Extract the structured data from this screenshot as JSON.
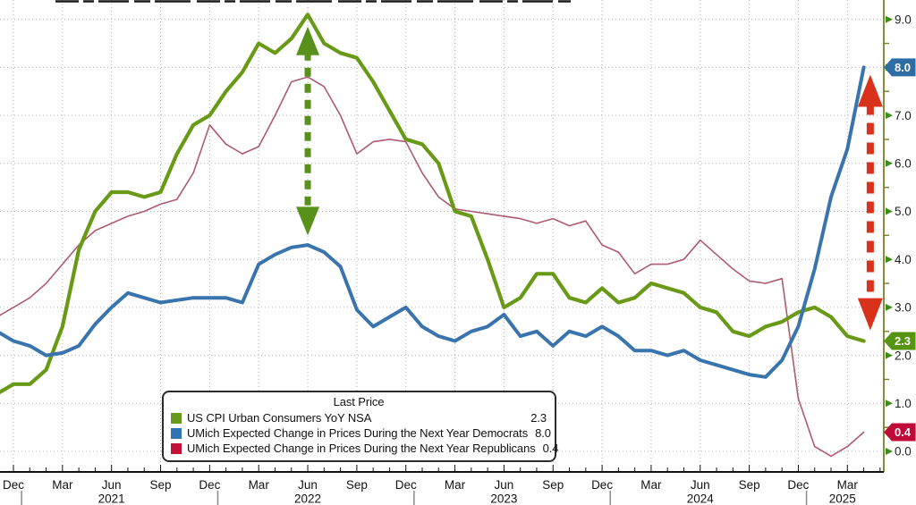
{
  "chart_data": {
    "type": "line",
    "title": "",
    "x_unit": "month",
    "x_range": [
      "Nov 2020",
      "Apr 2025"
    ],
    "start_month_index": -1,
    "ylim": [
      0,
      9
    ],
    "grid": "dotted",
    "legend": {
      "title": "Last Price",
      "position": "bottom-center-box"
    },
    "y_axis": {
      "side": "right",
      "ticks": [
        "9.0",
        "8.0",
        "7.0",
        "6.0",
        "5.0",
        "4.0",
        "3.0",
        "2.0",
        "1.0",
        "0.0"
      ],
      "minor_step": 0.5,
      "axis_color": "#7c7f21",
      "marker_color": "#3c8d1d",
      "label_color": "#1f1f1f"
    },
    "x_axis": {
      "axis_color": "#111111",
      "label_color": "#111111",
      "ticks": [
        {
          "label": "Dec",
          "m": 0
        },
        {
          "label": "Mar",
          "m": 3
        },
        {
          "label": "Jun",
          "m": 6
        },
        {
          "label": "Sep",
          "m": 9
        },
        {
          "label": "Dec",
          "m": 12
        },
        {
          "label": "Mar",
          "m": 15
        },
        {
          "label": "Jun",
          "m": 18
        },
        {
          "label": "Sep",
          "m": 21
        },
        {
          "label": "Dec",
          "m": 24
        },
        {
          "label": "Mar",
          "m": 27
        },
        {
          "label": "Jun",
          "m": 30
        },
        {
          "label": "Sep",
          "m": 33
        },
        {
          "label": "Dec",
          "m": 36
        },
        {
          "label": "Mar",
          "m": 39
        },
        {
          "label": "Jun",
          "m": 42
        },
        {
          "label": "Sep",
          "m": 45
        },
        {
          "label": "Dec",
          "m": 48
        },
        {
          "label": "Mar",
          "m": 51
        }
      ],
      "year_labels": [
        {
          "label": "2021",
          "m": 6
        },
        {
          "label": "2022",
          "m": 18
        },
        {
          "label": "2023",
          "m": 30
        },
        {
          "label": "2024",
          "m": 42
        },
        {
          "label": "2025",
          "m": 50.7
        }
      ],
      "year_separators_m": [
        0.5,
        12.5,
        24.5,
        36.5,
        48.5
      ]
    },
    "series": [
      {
        "name": "US CPI Urban Consumers YoY NSA",
        "last": "2.3",
        "line_color": "#699a17",
        "swatch_color": "#69991a",
        "badge_color": "#579510",
        "line_width": 4.2,
        "values": [
          1.2,
          1.4,
          1.4,
          1.7,
          2.6,
          4.2,
          5.0,
          5.4,
          5.4,
          5.3,
          5.4,
          6.2,
          6.8,
          7.0,
          7.5,
          7.9,
          8.5,
          8.3,
          8.6,
          9.1,
          8.5,
          8.3,
          8.2,
          7.7,
          7.1,
          6.5,
          6.4,
          6.0,
          5.0,
          4.9,
          4.0,
          3.0,
          3.2,
          3.7,
          3.7,
          3.2,
          3.1,
          3.4,
          3.1,
          3.2,
          3.5,
          3.4,
          3.3,
          3.0,
          2.9,
          2.5,
          2.4,
          2.6,
          2.7,
          2.9,
          3.0,
          2.8,
          2.4,
          2.3
        ]
      },
      {
        "name": "UMich Expected Change in Prices During the Next Year Democrats",
        "last": "8.0",
        "line_color": "#3a74ae",
        "swatch_color": "#2e74b5",
        "badge_color": "#2e6da4",
        "line_width": 4.0,
        "values": [
          2.5,
          2.3,
          2.2,
          2.0,
          2.05,
          2.2,
          2.65,
          3.0,
          3.3,
          3.2,
          3.1,
          3.15,
          3.2,
          3.2,
          3.2,
          3.1,
          3.9,
          4.1,
          4.25,
          4.3,
          4.15,
          3.85,
          2.95,
          2.6,
          2.8,
          3.0,
          2.6,
          2.4,
          2.3,
          2.5,
          2.6,
          2.85,
          2.4,
          2.5,
          2.2,
          2.5,
          2.4,
          2.6,
          2.4,
          2.1,
          2.1,
          2.0,
          2.1,
          1.9,
          1.8,
          1.7,
          1.6,
          1.55,
          1.9,
          2.6,
          3.8,
          5.3,
          6.3,
          8.0
        ]
      },
      {
        "name": "UMich Expected Change in Prices During the Next Year Republicans",
        "last": "0.4",
        "line_color": "#ad5a70",
        "swatch_color": "#c11237",
        "badge_color": "#c00b38",
        "line_width": 1.6,
        "values": [
          2.8,
          3.0,
          3.2,
          3.5,
          3.9,
          4.3,
          4.6,
          4.75,
          4.9,
          5.0,
          5.15,
          5.25,
          5.8,
          6.8,
          6.4,
          6.2,
          6.35,
          7.0,
          7.7,
          7.8,
          7.6,
          7.0,
          6.2,
          6.45,
          6.5,
          6.45,
          5.8,
          5.3,
          5.05,
          5.0,
          4.95,
          4.9,
          4.85,
          4.75,
          4.85,
          4.7,
          4.8,
          4.3,
          4.15,
          3.7,
          3.9,
          3.9,
          4.0,
          4.4,
          4.1,
          3.8,
          3.55,
          3.5,
          3.6,
          1.1,
          0.1,
          -0.1,
          0.1,
          0.4
        ]
      }
    ],
    "annotations": [
      {
        "type": "double-arrow",
        "x_month": 18,
        "value_top": 8.85,
        "value_bottom": 4.5,
        "color": "#58901c",
        "shaft_width": 7,
        "dash": "10 8",
        "head_w": 26,
        "head_l": 32,
        "meaning": "gap between CPI peak and Democrats expectations, Jun 2022"
      },
      {
        "type": "double-arrow",
        "x_month": 52.4,
        "value_top": 7.85,
        "value_bottom": 2.52,
        "color": "#d8311c",
        "shaft_width": 8,
        "dash": "13 9",
        "head_w": 28,
        "head_l": 36,
        "meaning": "gap between Democrats expectations 8.0 and CPI 2.3, 2025"
      }
    ]
  }
}
